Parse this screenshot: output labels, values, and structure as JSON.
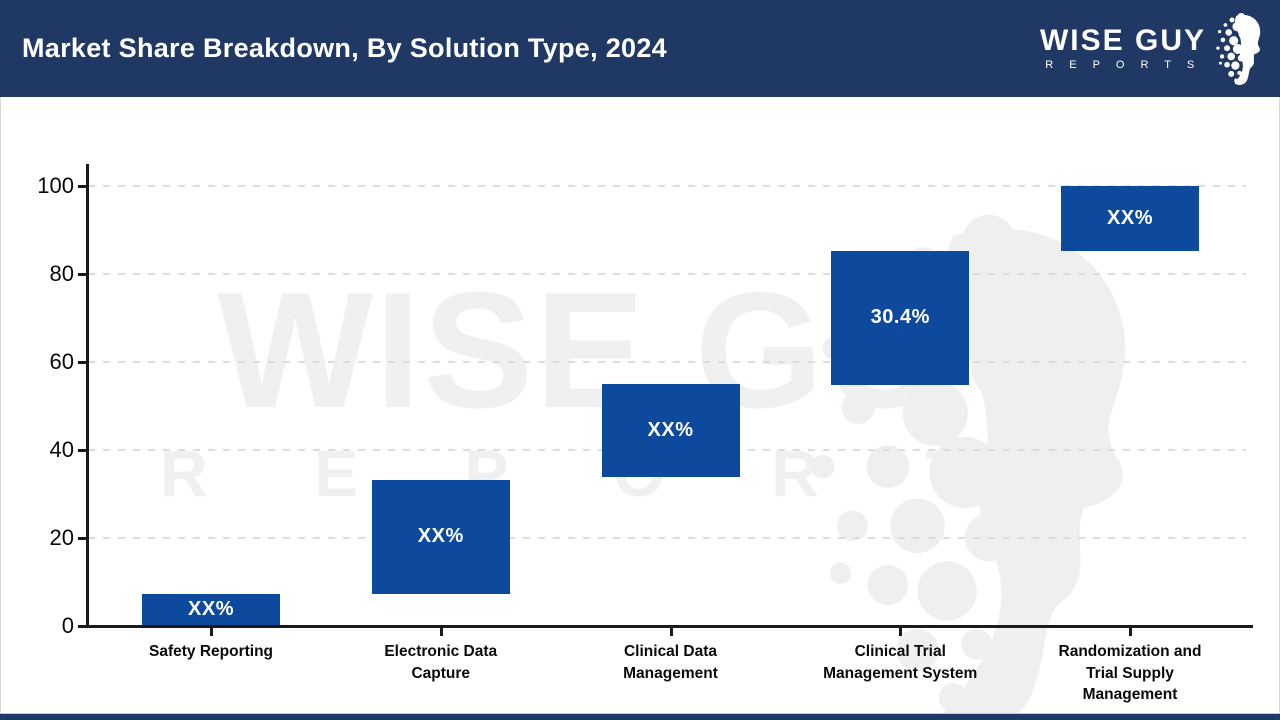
{
  "header": {
    "title": "Market Share Breakdown, By Solution Type, 2024",
    "logo": {
      "brand": "WISE GUY",
      "sub": "R E P O R T S",
      "icon": "wise-guy-face-logo"
    }
  },
  "watermark": {
    "brand": "WISE GUY",
    "sub": "R E P O R T S"
  },
  "colors": {
    "header_bg": "#1f3864",
    "footer_bg": "#1f3864",
    "bar": "#0d4a9e",
    "bar_label": "#ffffff",
    "grid": "#dcdcdc",
    "axis": "#1a1a1a",
    "watermark": "#f0f0f1"
  },
  "chart_data": {
    "type": "bar",
    "subtype": "waterfall",
    "title": "Market Share Breakdown, By Solution Type, 2024",
    "categories": [
      "Safety Reporting",
      "Electronic Data Capture",
      "Clinical Data Management",
      "Clinical Trial Management System",
      "Randomization and Trial Supply Management"
    ],
    "category_lines": [
      [
        "Safety Reporting"
      ],
      [
        "Electronic Data",
        "Capture"
      ],
      [
        "Clinical Data",
        "Management"
      ],
      [
        "Clinical Trial",
        "Management System"
      ],
      [
        "Randomization and",
        "Trial Supply",
        "Management"
      ]
    ],
    "bars": [
      {
        "label": "XX%",
        "start": 0,
        "end": 7.3
      },
      {
        "label": "XX%",
        "start": 7.3,
        "end": 33.2
      },
      {
        "label": "XX%",
        "start": 33.9,
        "end": 55.0
      },
      {
        "label": "30.4%",
        "start": 54.8,
        "end": 85.2
      },
      {
        "label": "XX%",
        "start": 85.2,
        "end": 100
      }
    ],
    "yticks": [
      0,
      20,
      40,
      60,
      80,
      100
    ],
    "ylim": [
      0,
      100
    ],
    "xlabel": "",
    "ylabel": "",
    "legend": "none",
    "grid": "horizontal-dashed"
  }
}
